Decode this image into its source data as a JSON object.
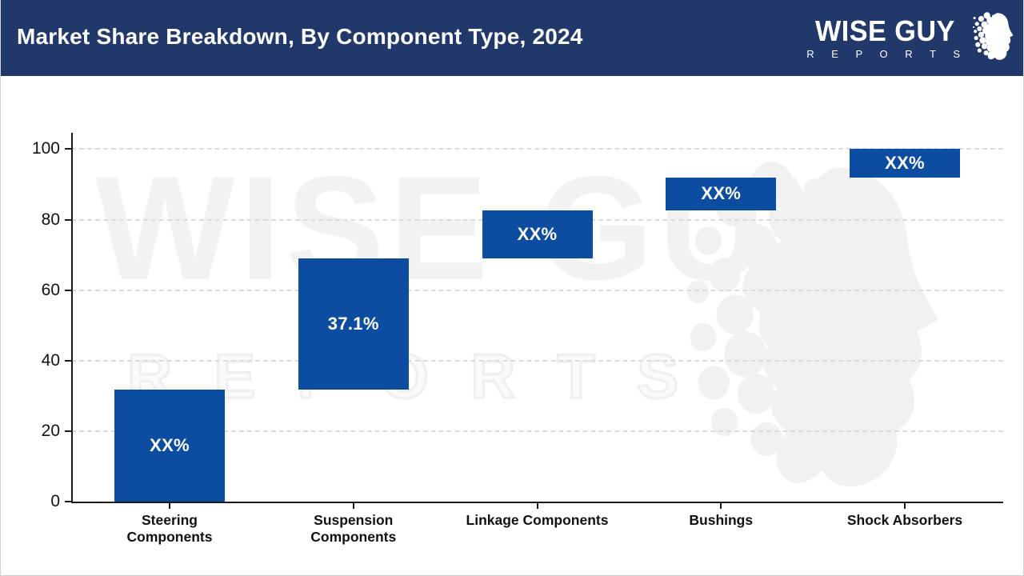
{
  "header": {
    "title": "Market Share Breakdown, By Component Type, 2024",
    "brand_name": "WISE GUY",
    "brand_sub": "R E P O R T S"
  },
  "watermark": {
    "line1": "WISE GUY",
    "line2": "REPORTS"
  },
  "chart_data": {
    "type": "bar",
    "subtype": "waterfall",
    "title": "Market Share Breakdown, By Component Type, 2024",
    "categories": [
      "Steering Components",
      "Suspension Components",
      "Linkage Components",
      "Bushings",
      "Shock Absorbers"
    ],
    "category_lines": [
      [
        "Steering",
        "Components"
      ],
      [
        "Suspension",
        "Components"
      ],
      [
        "Linkage Components"
      ],
      [
        "Bushings"
      ],
      [
        "Shock Absorbers"
      ]
    ],
    "starts": [
      0,
      31.8,
      68.9,
      82.7,
      92.0
    ],
    "ends": [
      31.8,
      68.9,
      82.7,
      92.0,
      100.0
    ],
    "values": [
      31.8,
      37.1,
      13.8,
      9.3,
      8.0
    ],
    "bar_labels": [
      "XX%",
      "37.1%",
      "XX%",
      "XX%",
      "XX%"
    ],
    "bar_color": "#0c4da2",
    "xlabel": "",
    "ylabel": "",
    "ylim": [
      0,
      104.5
    ],
    "yticks": [
      0,
      20,
      40,
      60,
      80,
      100
    ],
    "grid": "horizontal-dashed",
    "legend": "none"
  }
}
